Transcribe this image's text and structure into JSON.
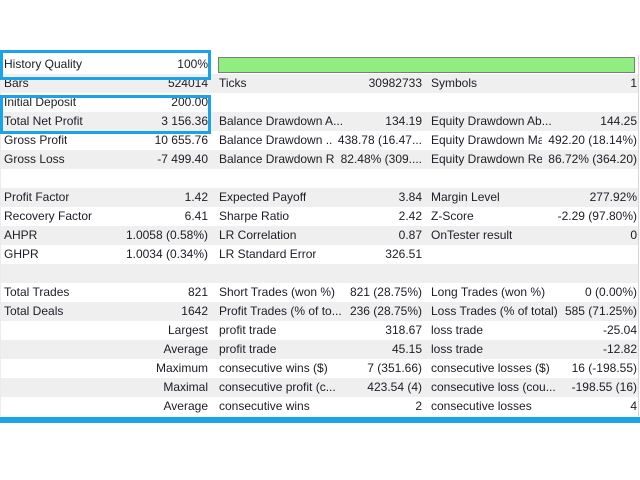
{
  "colors": {
    "accent_blue": "#1aa3e8",
    "progress_green": "#90ee80",
    "progress_border": "#7b7b7b",
    "row_stripe": "#efefef",
    "text": "#1c1c26"
  },
  "progress": {
    "name": "history-quality-progress",
    "value_label": "100%"
  },
  "table": {
    "rows": [
      {
        "c1": {
          "l": "History Quality",
          "v": "100%"
        },
        "c2": {
          "l": "",
          "v": ""
        },
        "c3": {
          "l": "",
          "v": ""
        }
      },
      {
        "c1": {
          "l": "Bars",
          "v": "524014"
        },
        "c2": {
          "l": "Ticks",
          "v": "30982733"
        },
        "c3": {
          "l": "Symbols",
          "v": "1"
        }
      },
      {
        "c1": {
          "l": "Initial Deposit",
          "v": "200.00"
        },
        "c2": {
          "l": "",
          "v": ""
        },
        "c3": {
          "l": "",
          "v": ""
        }
      },
      {
        "c1": {
          "l": "Total Net Profit",
          "v": "3 156.36"
        },
        "c2": {
          "l": "Balance Drawdown A...",
          "v": "134.19"
        },
        "c3": {
          "l": "Equity Drawdown Ab...",
          "v": "144.25"
        }
      },
      {
        "c1": {
          "l": "Gross Profit",
          "v": "10 655.76"
        },
        "c2": {
          "l": "Balance Drawdown ...",
          "v": "438.78 (16.47..."
        },
        "c3": {
          "l": "Equity Drawdown Ma...",
          "v": "492.20 (18.14%)"
        }
      },
      {
        "c1": {
          "l": "Gross Loss",
          "v": "-7 499.40"
        },
        "c2": {
          "l": "Balance Drawdown R...",
          "v": "82.48% (309...."
        },
        "c3": {
          "l": "Equity Drawdown Rel...",
          "v": "86.72% (364.20)"
        }
      },
      {
        "c1": {
          "l": "",
          "v": ""
        },
        "c2": {
          "l": "",
          "v": ""
        },
        "c3": {
          "l": "",
          "v": ""
        }
      },
      {
        "c1": {
          "l": "Profit Factor",
          "v": "1.42"
        },
        "c2": {
          "l": "Expected Payoff",
          "v": "3.84"
        },
        "c3": {
          "l": "Margin Level",
          "v": "277.92%"
        }
      },
      {
        "c1": {
          "l": "Recovery Factor",
          "v": "6.41"
        },
        "c2": {
          "l": "Sharpe Ratio",
          "v": "2.42"
        },
        "c3": {
          "l": "Z-Score",
          "v": "-2.29 (97.80%)"
        }
      },
      {
        "c1": {
          "l": "AHPR",
          "v": "1.0058 (0.58%)"
        },
        "c2": {
          "l": "LR Correlation",
          "v": "0.87"
        },
        "c3": {
          "l": "OnTester result",
          "v": "0"
        }
      },
      {
        "c1": {
          "l": "GHPR",
          "v": "1.0034 (0.34%)"
        },
        "c2": {
          "l": "LR Standard Error",
          "v": "326.51"
        },
        "c3": {
          "l": "",
          "v": ""
        }
      },
      {
        "c1": {
          "l": "",
          "v": ""
        },
        "c2": {
          "l": "",
          "v": ""
        },
        "c3": {
          "l": "",
          "v": ""
        }
      },
      {
        "c1": {
          "l": "Total Trades",
          "v": "821"
        },
        "c2": {
          "l": "Short Trades (won %)",
          "v": "821 (28.75%)"
        },
        "c3": {
          "l": "Long Trades (won %)",
          "v": "0 (0.00%)"
        }
      },
      {
        "c1": {
          "l": "Total Deals",
          "v": "1642"
        },
        "c2": {
          "l": "Profit Trades (% of to...",
          "v": "236 (28.75%)"
        },
        "c3": {
          "l": "Loss Trades (% of total)",
          "v": "585 (71.25%)"
        }
      },
      {
        "c1": {
          "l": "",
          "v": "Largest"
        },
        "c2": {
          "l": "profit trade",
          "v": "318.67"
        },
        "c3": {
          "l": "loss trade",
          "v": "-25.04"
        }
      },
      {
        "c1": {
          "l": "",
          "v": "Average"
        },
        "c2": {
          "l": "profit trade",
          "v": "45.15"
        },
        "c3": {
          "l": "loss trade",
          "v": "-12.82"
        }
      },
      {
        "c1": {
          "l": "",
          "v": "Maximum"
        },
        "c2": {
          "l": "consecutive wins ($)",
          "v": "7 (351.66)"
        },
        "c3": {
          "l": "consecutive losses ($)",
          "v": "16 (-198.55)"
        }
      },
      {
        "c1": {
          "l": "",
          "v": "Maximal"
        },
        "c2": {
          "l": "consecutive profit (c...",
          "v": "423.54 (4)"
        },
        "c3": {
          "l": "consecutive loss (cou...",
          "v": "-198.55 (16)"
        }
      },
      {
        "c1": {
          "l": "",
          "v": "Average"
        },
        "c2": {
          "l": "consecutive wins",
          "v": "2"
        },
        "c3": {
          "l": "consecutive losses",
          "v": "4"
        }
      }
    ]
  }
}
